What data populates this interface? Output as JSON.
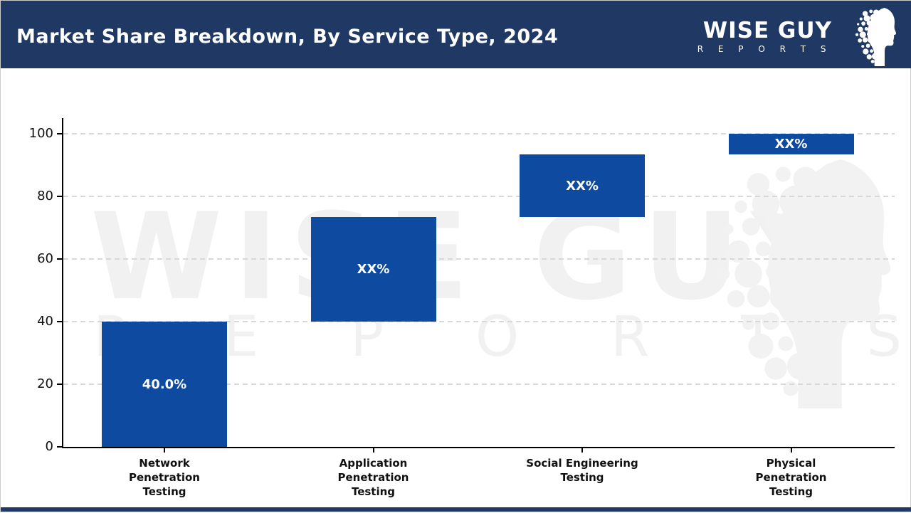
{
  "header": {
    "title": "Market Share Breakdown, By Service Type, 2024",
    "logo": {
      "name": "WISE GUY",
      "sub": "R E P O R T S"
    }
  },
  "watermark": {
    "name": "WISE GUY",
    "sub": "R E P O R T S"
  },
  "chart_data": {
    "type": "bar",
    "subtype": "waterfall",
    "title": "Market Share Breakdown, By Service Type, 2024",
    "categories": [
      [
        "Network",
        "Penetration",
        "Testing"
      ],
      [
        "Application",
        "Penetration",
        "Testing"
      ],
      [
        "Social Engineering",
        "Testing"
      ],
      [
        "Physical",
        "Penetration",
        "Testing"
      ]
    ],
    "segments": [
      {
        "start": 0,
        "end": 40,
        "label": "40.0%"
      },
      {
        "start": 40,
        "end": 73.3,
        "label": "XX%"
      },
      {
        "start": 73.3,
        "end": 93.3,
        "label": "XX%"
      },
      {
        "start": 93.3,
        "end": 100,
        "label": "XX%"
      }
    ],
    "yticks": [
      0,
      20,
      40,
      60,
      80,
      100
    ],
    "ylim": [
      0,
      105
    ],
    "xlabel": "",
    "ylabel": "",
    "grid": "horizontal-dashed",
    "legend": "none",
    "colors": {
      "bar": "#0d4aa0",
      "bar_label": "#ffffff",
      "header_bg": "#1f3864",
      "footer_bg": "#1f3864",
      "grid": "#d8d8d8",
      "axis": "#000000",
      "watermark": "#f1f1f1"
    }
  }
}
